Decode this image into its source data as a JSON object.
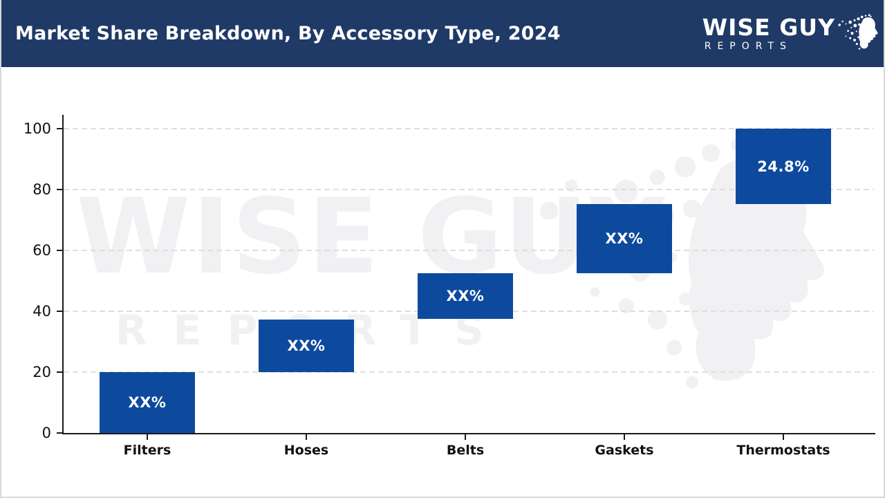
{
  "header": {
    "title": "Market Share Breakdown, By Accessory Type, 2024",
    "logo": {
      "brand": "WISE GUY",
      "sub": "REPORTS"
    }
  },
  "watermark": {
    "brand": "WISE GUY",
    "sub": "REPORTS"
  },
  "colors": {
    "header_bg": "#1f3a66",
    "bar_fill": "#0d4a9e",
    "bar_label": "#ffffff",
    "grid_line": "#dedede",
    "axis_line": "#1a1a1a",
    "watermark": "#f1f1f3"
  },
  "chart_data": {
    "type": "bar",
    "subtype": "waterfall-floating-bars",
    "title": "Market Share Breakdown, By Accessory Type, 2024",
    "categories": [
      "Filters",
      "Hoses",
      "Belts",
      "Gaskets",
      "Thermostats"
    ],
    "segments": [
      [
        0,
        20
      ],
      [
        20,
        37.2
      ],
      [
        37.4,
        52.4
      ],
      [
        52.6,
        75.2
      ],
      [
        75.2,
        100
      ]
    ],
    "bar_labels": [
      "XX%",
      "XX%",
      "XX%",
      "XX%",
      "24.8%"
    ],
    "yticks": [
      0,
      20,
      40,
      60,
      80,
      100
    ],
    "ylim": [
      0,
      100
    ],
    "xlabel": "",
    "ylabel": "",
    "grid": "horizontal-dashed",
    "legend": "none"
  }
}
